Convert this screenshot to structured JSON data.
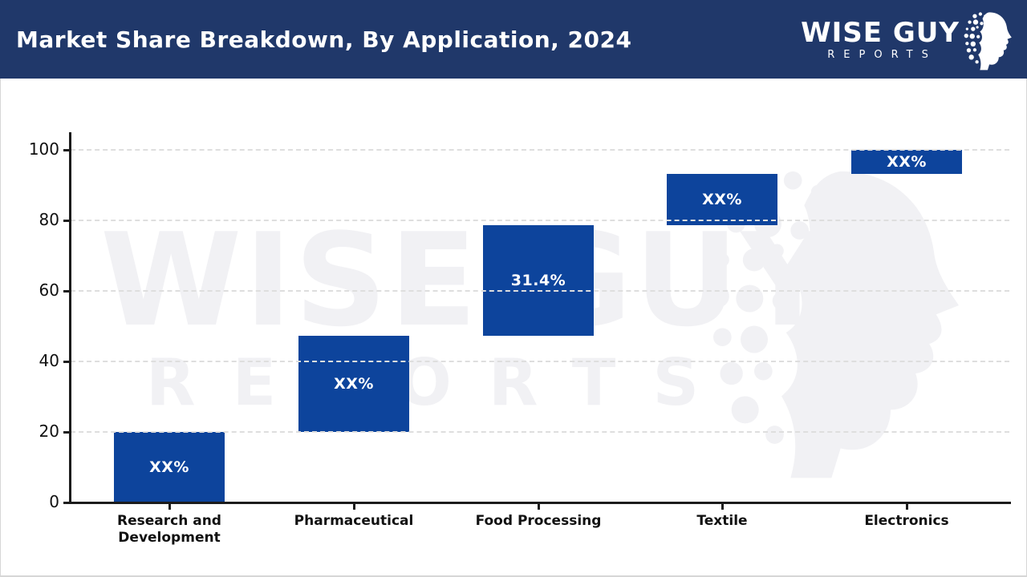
{
  "header": {
    "title": "Market Share Breakdown, By Application, 2024",
    "logo": {
      "name_line": "WISE GUY",
      "sub_line": "REPORTS",
      "head_icon": "dotted-face-profile"
    }
  },
  "watermark": {
    "line1": "WISE GUY",
    "line2": "REPORTS"
  },
  "colors": {
    "header_bg": "#20386a",
    "bar": "#0d449c",
    "grid": "#dedede",
    "axis": "#1c1c1c",
    "watermark": "#f1f1f4",
    "bar_label_text": "#ffffff",
    "page_border": "#d6d6d6"
  },
  "chart_data": {
    "type": "bar",
    "subtype": "waterfall",
    "title": "Market Share Breakdown, By Application, 2024",
    "categories": [
      "Research and Development",
      "Pharmaceutical",
      "Food Processing",
      "Textile",
      "Electronics"
    ],
    "segments": [
      {
        "category": "Research and Development",
        "start": 0,
        "end": 20,
        "value_pct": 20,
        "label": "XX%"
      },
      {
        "category": "Pharmaceutical",
        "start": 20,
        "end": 47.3,
        "value_pct": 27.3,
        "label": "XX%"
      },
      {
        "category": "Food Processing",
        "start": 47.3,
        "end": 78.7,
        "value_pct": 31.4,
        "label": "31.4%"
      },
      {
        "category": "Textile",
        "start": 78.7,
        "end": 93.2,
        "value_pct": 14.5,
        "label": "XX%"
      },
      {
        "category": "Electronics",
        "start": 93.2,
        "end": 100,
        "value_pct": 6.8,
        "label": "XX%"
      }
    ],
    "y_ticks": [
      0,
      20,
      40,
      60,
      80,
      100
    ],
    "ylim": [
      0,
      105
    ],
    "xlabel": "",
    "ylabel": "",
    "grid": "horizontal-dashed-over-bars",
    "legend": "none",
    "bar_color": "#0d449c"
  }
}
